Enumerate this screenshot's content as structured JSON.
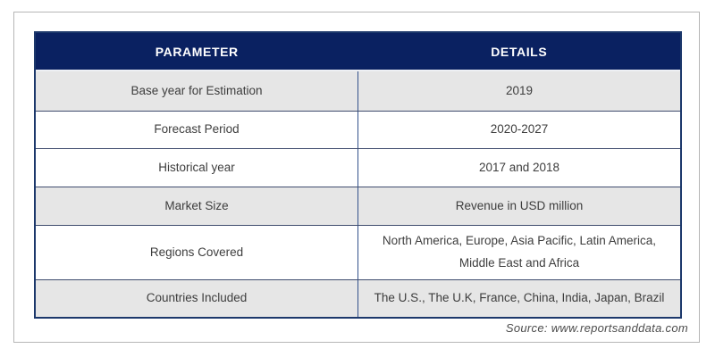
{
  "table": {
    "columns": {
      "parameter": "PARAMETER",
      "details": "DETAILS"
    },
    "rows": [
      {
        "parameter": "Base year for Estimation",
        "details": "2019",
        "shaded": true
      },
      {
        "parameter": "Forecast Period",
        "details": "2020-2027",
        "shaded": false
      },
      {
        "parameter": "Historical year",
        "details": "2017 and 2018",
        "shaded": false
      },
      {
        "parameter": "Market Size",
        "details": "Revenue in USD million",
        "shaded": true
      },
      {
        "parameter": "Regions Covered",
        "details": "North America, Europe, Asia Pacific, Latin America, Middle East and Africa",
        "shaded": false
      },
      {
        "parameter": "Countries Included",
        "details": "The U.S., The  U.K, France, China, India, Japan, Brazil",
        "shaded": true
      }
    ]
  },
  "source": {
    "label": "Source: www.reportsanddata.com"
  },
  "colors": {
    "header_bg": "#0a2161",
    "header_text": "#ffffff",
    "row_shaded_bg": "#e6e6e6",
    "row_plain_bg": "#ffffff",
    "table_border": "#1c386b",
    "inner_border": "#3f4c6e",
    "column_divider": "#33518b",
    "cell_text": "#3d3d3d",
    "source_text": "#4c4c4c",
    "frame_border": "#b6b6b6"
  },
  "chart_data": {
    "type": "table",
    "title": "Report scope parameters",
    "columns": [
      "PARAMETER",
      "DETAILS"
    ],
    "rows": [
      [
        "Base year for Estimation",
        "2019"
      ],
      [
        "Forecast Period",
        "2020-2027"
      ],
      [
        "Historical year",
        "2017 and 2018"
      ],
      [
        "Market Size",
        "Revenue in USD million"
      ],
      [
        "Regions Covered",
        "North America, Europe, Asia Pacific, Latin America, Middle East and Africa"
      ],
      [
        "Countries Included",
        "The U.S., The  U.K, France, China, India, Japan, Brazil"
      ]
    ],
    "annotations": [
      "Source: www.reportsanddata.com"
    ]
  }
}
